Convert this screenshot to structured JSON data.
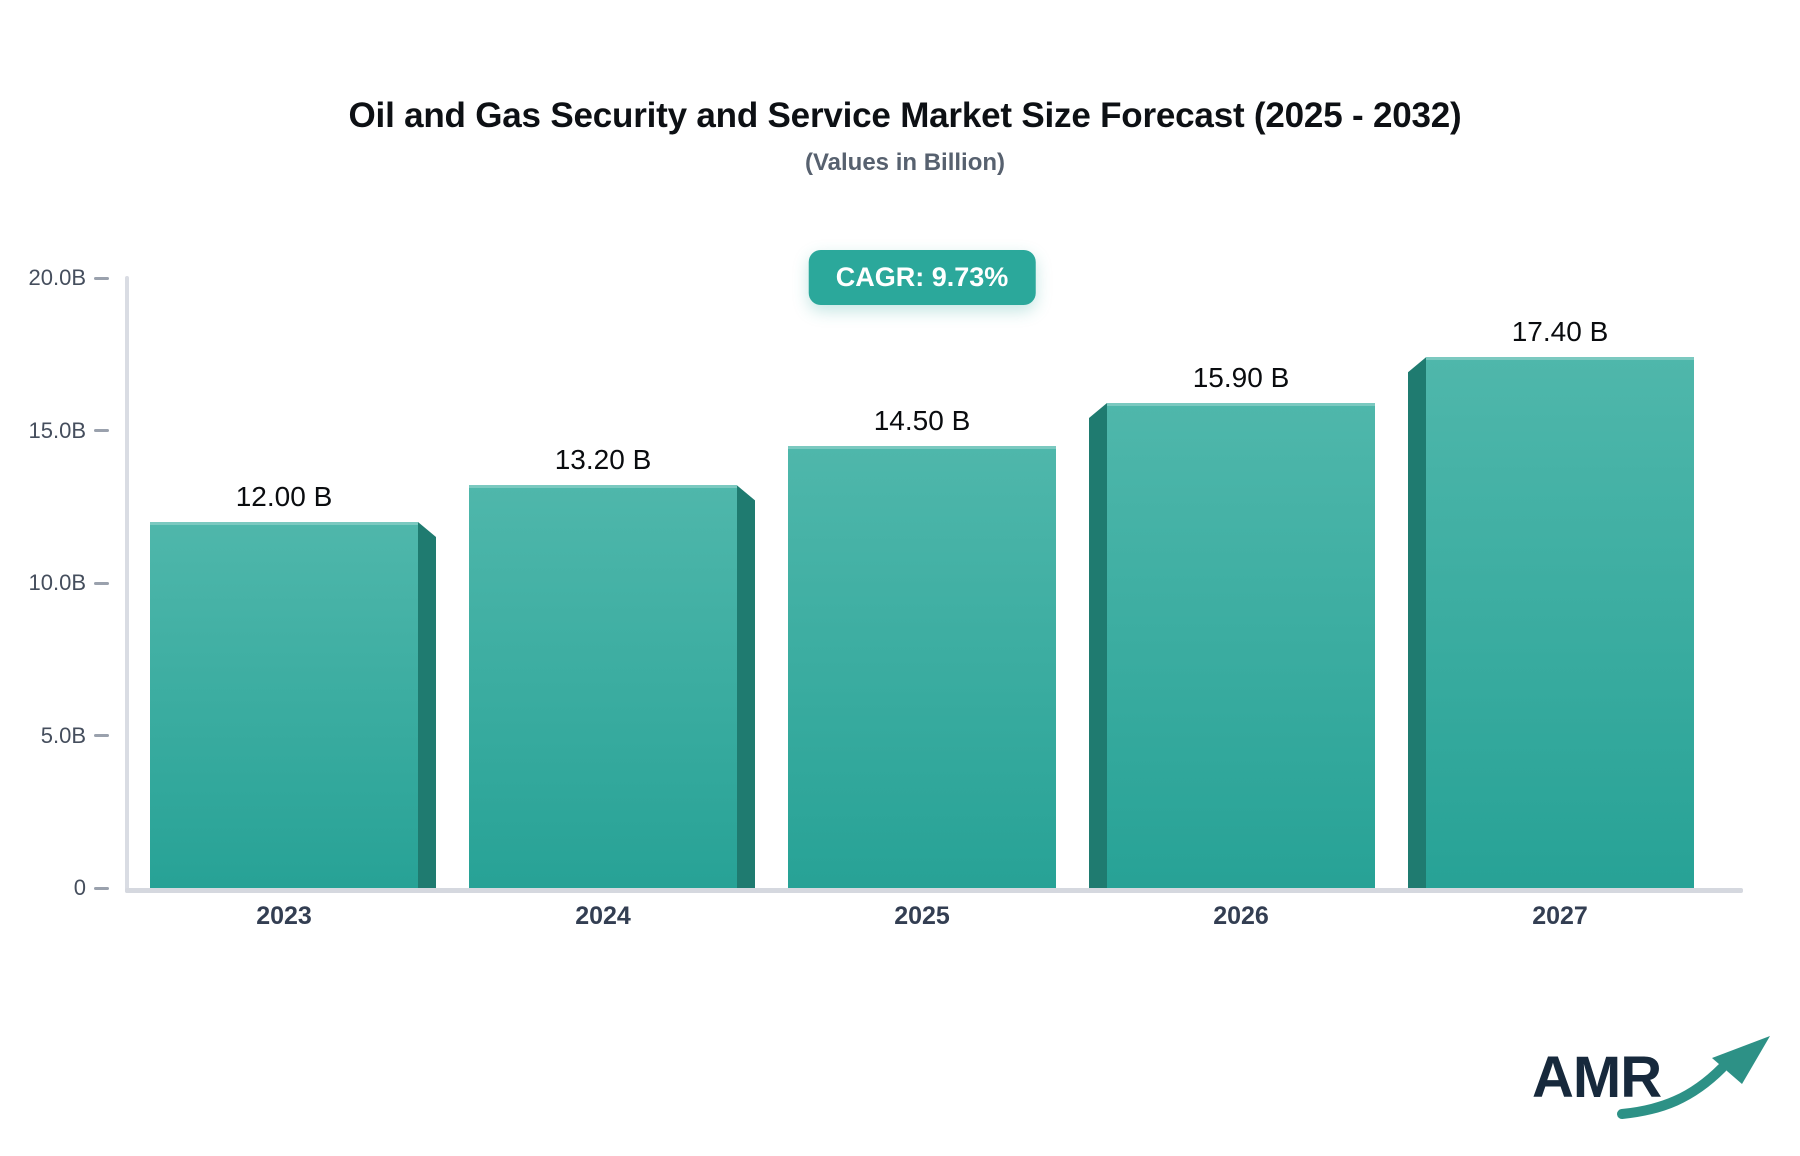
{
  "header": {
    "title": "Oil and Gas Security and Service Market Size Forecast (2025 - 2032)",
    "subtitle": "(Values in Billion)",
    "cagr_badge": "CAGR: 9.73%"
  },
  "chart_data": {
    "type": "bar",
    "title": "Oil and Gas Security and Service Market Size Forecast (2025 - 2032)",
    "subtitle": "(Values in Billion)",
    "annotation": "CAGR: 9.73%",
    "categories": [
      "2023",
      "2024",
      "2025",
      "2026",
      "2027"
    ],
    "values": [
      12.0,
      13.2,
      14.5,
      15.9,
      17.4
    ],
    "bar_labels": [
      "12.00 B",
      "13.20 B",
      "14.50 B",
      "15.90 B",
      "17.40 B"
    ],
    "ylim": [
      0,
      20
    ],
    "y_ticks": [
      {
        "label": "20.0B",
        "value": 20
      },
      {
        "label": "15.0B",
        "value": 15
      },
      {
        "label": "10.0B",
        "value": 10
      },
      {
        "label": "5.0B",
        "value": 5
      },
      {
        "label": "0",
        "value": 0
      }
    ],
    "xlabel": "",
    "ylabel": "",
    "grid": false,
    "legend": false,
    "bar_style": "3d-extruded"
  },
  "branding": {
    "logo_text": "AMR",
    "logo_arrow_icon": "trend-up-arrow"
  },
  "colors": {
    "badge_bg": "#2ba89b",
    "bar_face_top": "#4fb7ab",
    "bar_face_bottom": "#27a296",
    "bar_side": "#1f7b70",
    "axis_line": "#d9dce3",
    "tick_dash": "#9aa1ad",
    "title_text": "#0d1014",
    "subtitle_text": "#57616f",
    "logo_navy": "#17293c",
    "logo_teal": "#2d9186"
  }
}
